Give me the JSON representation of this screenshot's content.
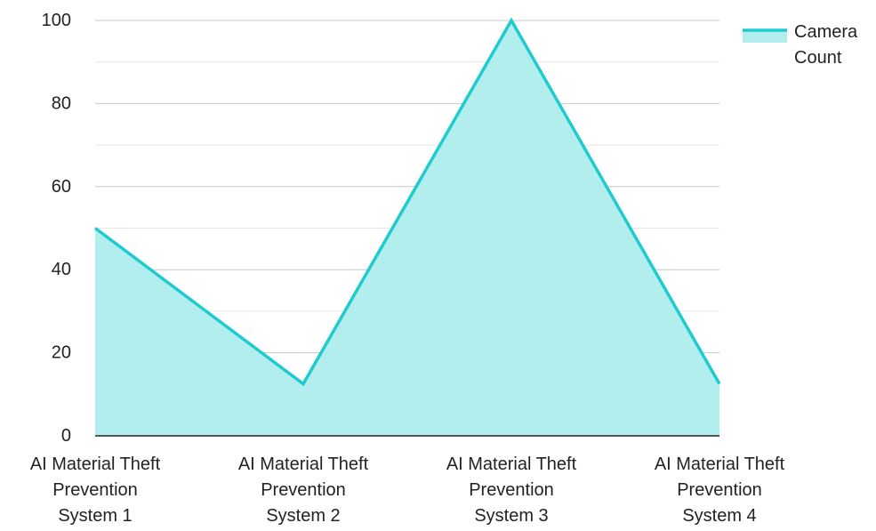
{
  "chart_data": {
    "type": "area",
    "categories": [
      "AI Material Theft Prevention System 1",
      "AI Material Theft Prevention System 2",
      "AI Material Theft Prevention System 3",
      "AI Material Theft Prevention System 4"
    ],
    "category_lines": [
      [
        "AI Material Theft",
        "Prevention",
        "System 1"
      ],
      [
        "AI Material Theft",
        "Prevention",
        "System 2"
      ],
      [
        "AI Material Theft",
        "Prevention",
        "System 3"
      ],
      [
        "AI Material Theft",
        "Prevention",
        "System 4"
      ]
    ],
    "series": [
      {
        "name": "Camera Count",
        "legend_lines": [
          "Camera",
          "Count"
        ],
        "values": [
          50,
          12.5,
          100,
          12.5
        ],
        "line_color": "#1ECBCF",
        "fill_color": "#B3EEEE"
      }
    ],
    "yticks": [
      0,
      20,
      40,
      60,
      80,
      100
    ],
    "ylim": [
      0,
      100
    ],
    "grid": true,
    "legend_position": "top-right",
    "title": "",
    "xlabel": "",
    "ylabel": ""
  }
}
